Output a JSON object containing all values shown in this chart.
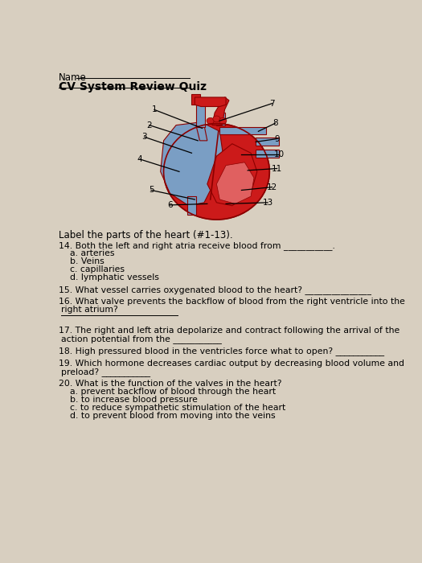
{
  "bg_color": "#d8cfc0",
  "title_name": "Name",
  "title_quiz": "CV System Review Quiz",
  "instruction": "Label the parts of the heart (#1-13).",
  "questions": [
    {
      "num": "14.",
      "text": "Both the left and right atria receive blood from ___________.",
      "choices": [
        "a. arteries",
        "b. Veins",
        "c. capillaries",
        "d. lymphatic vessels"
      ],
      "blank_after": false
    },
    {
      "num": "15.",
      "text": "What vessel carries oxygenated blood to the heart? _______________",
      "choices": [],
      "blank_after": false
    },
    {
      "num": "16.",
      "text": "What valve prevents the backflow of blood from the right ventricle into the",
      "text2": "right atrium?",
      "blank_line": true,
      "choices": [],
      "blank_after": false
    },
    {
      "num": "17.",
      "text": "The right and left atria depolarize and contract following the arrival of the",
      "text2": "action potential from the ___________",
      "blank_line": false,
      "choices": [],
      "blank_after": false
    },
    {
      "num": "18.",
      "text": "High pressured blood in the ventricles force what to open? ___________",
      "choices": [],
      "blank_after": false
    },
    {
      "num": "19.",
      "text": "Which hormone decreases cardiac output by decreasing blood volume and",
      "text2": "preload? ___________",
      "blank_line": false,
      "choices": [],
      "blank_after": false
    },
    {
      "num": "20.",
      "text": "What is the function of the valves in the heart?",
      "choices": [
        "a. prevent backflow of blood through the heart",
        "b. to increase blood pressure",
        "c. to reduce sympathetic stimulation of the heart",
        "d. to prevent blood from moving into the veins"
      ],
      "blank_after": false
    }
  ],
  "heart_red": "#cc1a1a",
  "heart_blue": "#7a9ec4",
  "heart_pink": "#e06060",
  "label_coords": [
    [
      "1",
      163,
      68
    ],
    [
      "2",
      155,
      93
    ],
    [
      "3",
      147,
      112
    ],
    [
      "4",
      140,
      148
    ],
    [
      "5",
      158,
      198
    ],
    [
      "6",
      188,
      222
    ],
    [
      "7",
      352,
      58
    ],
    [
      "8",
      357,
      90
    ],
    [
      "9",
      360,
      115
    ],
    [
      "10",
      363,
      140
    ],
    [
      "11",
      360,
      163
    ],
    [
      "12",
      352,
      193
    ],
    [
      "13",
      345,
      218
    ]
  ]
}
